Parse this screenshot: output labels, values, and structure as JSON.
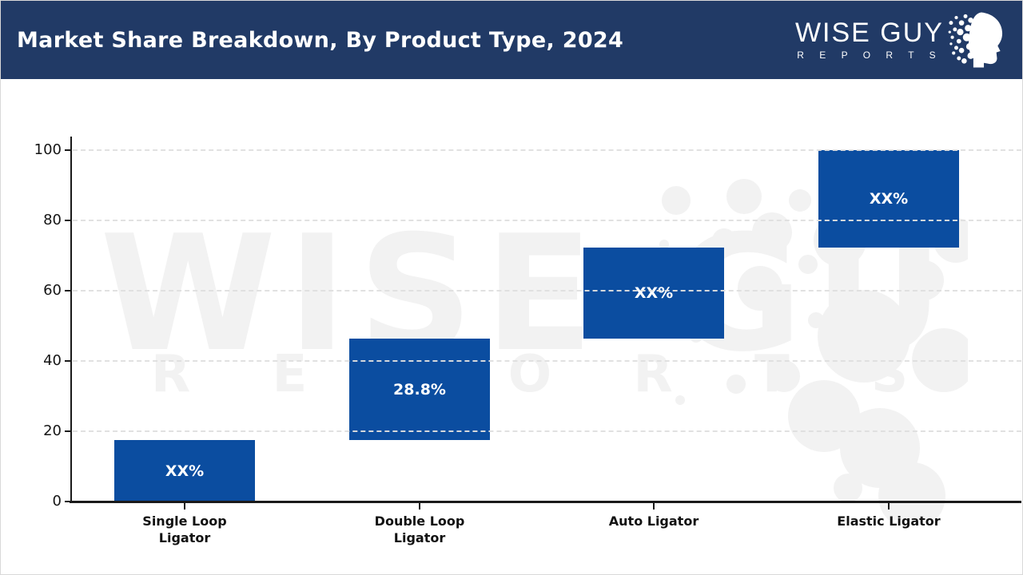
{
  "header": {
    "title": "Market Share Breakdown, By Product Type, 2024",
    "logo": {
      "line1": "WISE GUY",
      "line2": "R E P O R T S",
      "head_icon": "dotted-face-profile"
    }
  },
  "watermark": {
    "line1": "WISE GU",
    "line2": "R E P O R T S",
    "head_icon": "dotted-face-profile"
  },
  "colors": {
    "header_bg": "#213a66",
    "bar": "#0b4da0",
    "bar_label_text": "#ffffff",
    "axis": "#1a1a1a",
    "grid": "#e0e0e0",
    "watermark": "#f2f2f2",
    "page_border": "#d9d9d9"
  },
  "chart_data": {
    "type": "bar",
    "variant": "waterfall-stacked-to-100",
    "title": "Market Share Breakdown, By Product Type, 2024",
    "categories": [
      "Single Loop Ligator",
      "Double Loop Ligator",
      "Auto Ligator",
      "Elastic Ligator"
    ],
    "category_label_lines": [
      [
        "Single Loop",
        "Ligator"
      ],
      [
        "Double Loop",
        "Ligator"
      ],
      [
        "Auto Ligator"
      ],
      [
        "Elastic Ligator"
      ]
    ],
    "segments": [
      {
        "category": "Single Loop Ligator",
        "start": 0,
        "end": 17.5,
        "value": 17.5,
        "label": "XX%"
      },
      {
        "category": "Double Loop Ligator",
        "start": 17.5,
        "end": 46.3,
        "value": 28.8,
        "label": "28.8%"
      },
      {
        "category": "Auto Ligator",
        "start": 46.3,
        "end": 72.3,
        "value": 26.0,
        "label": "XX%"
      },
      {
        "category": "Elastic Ligator",
        "start": 72.3,
        "end": 100,
        "value": 27.7,
        "label": "XX%"
      }
    ],
    "xlabel": "",
    "ylabel": "",
    "yticks": [
      0,
      20,
      40,
      60,
      80,
      100
    ],
    "ylim": [
      0,
      105
    ],
    "grid": "horizontal-dashed",
    "legend": null,
    "bar_label_note": "values masked as XX% except Double Loop Ligator (28.8%)"
  }
}
